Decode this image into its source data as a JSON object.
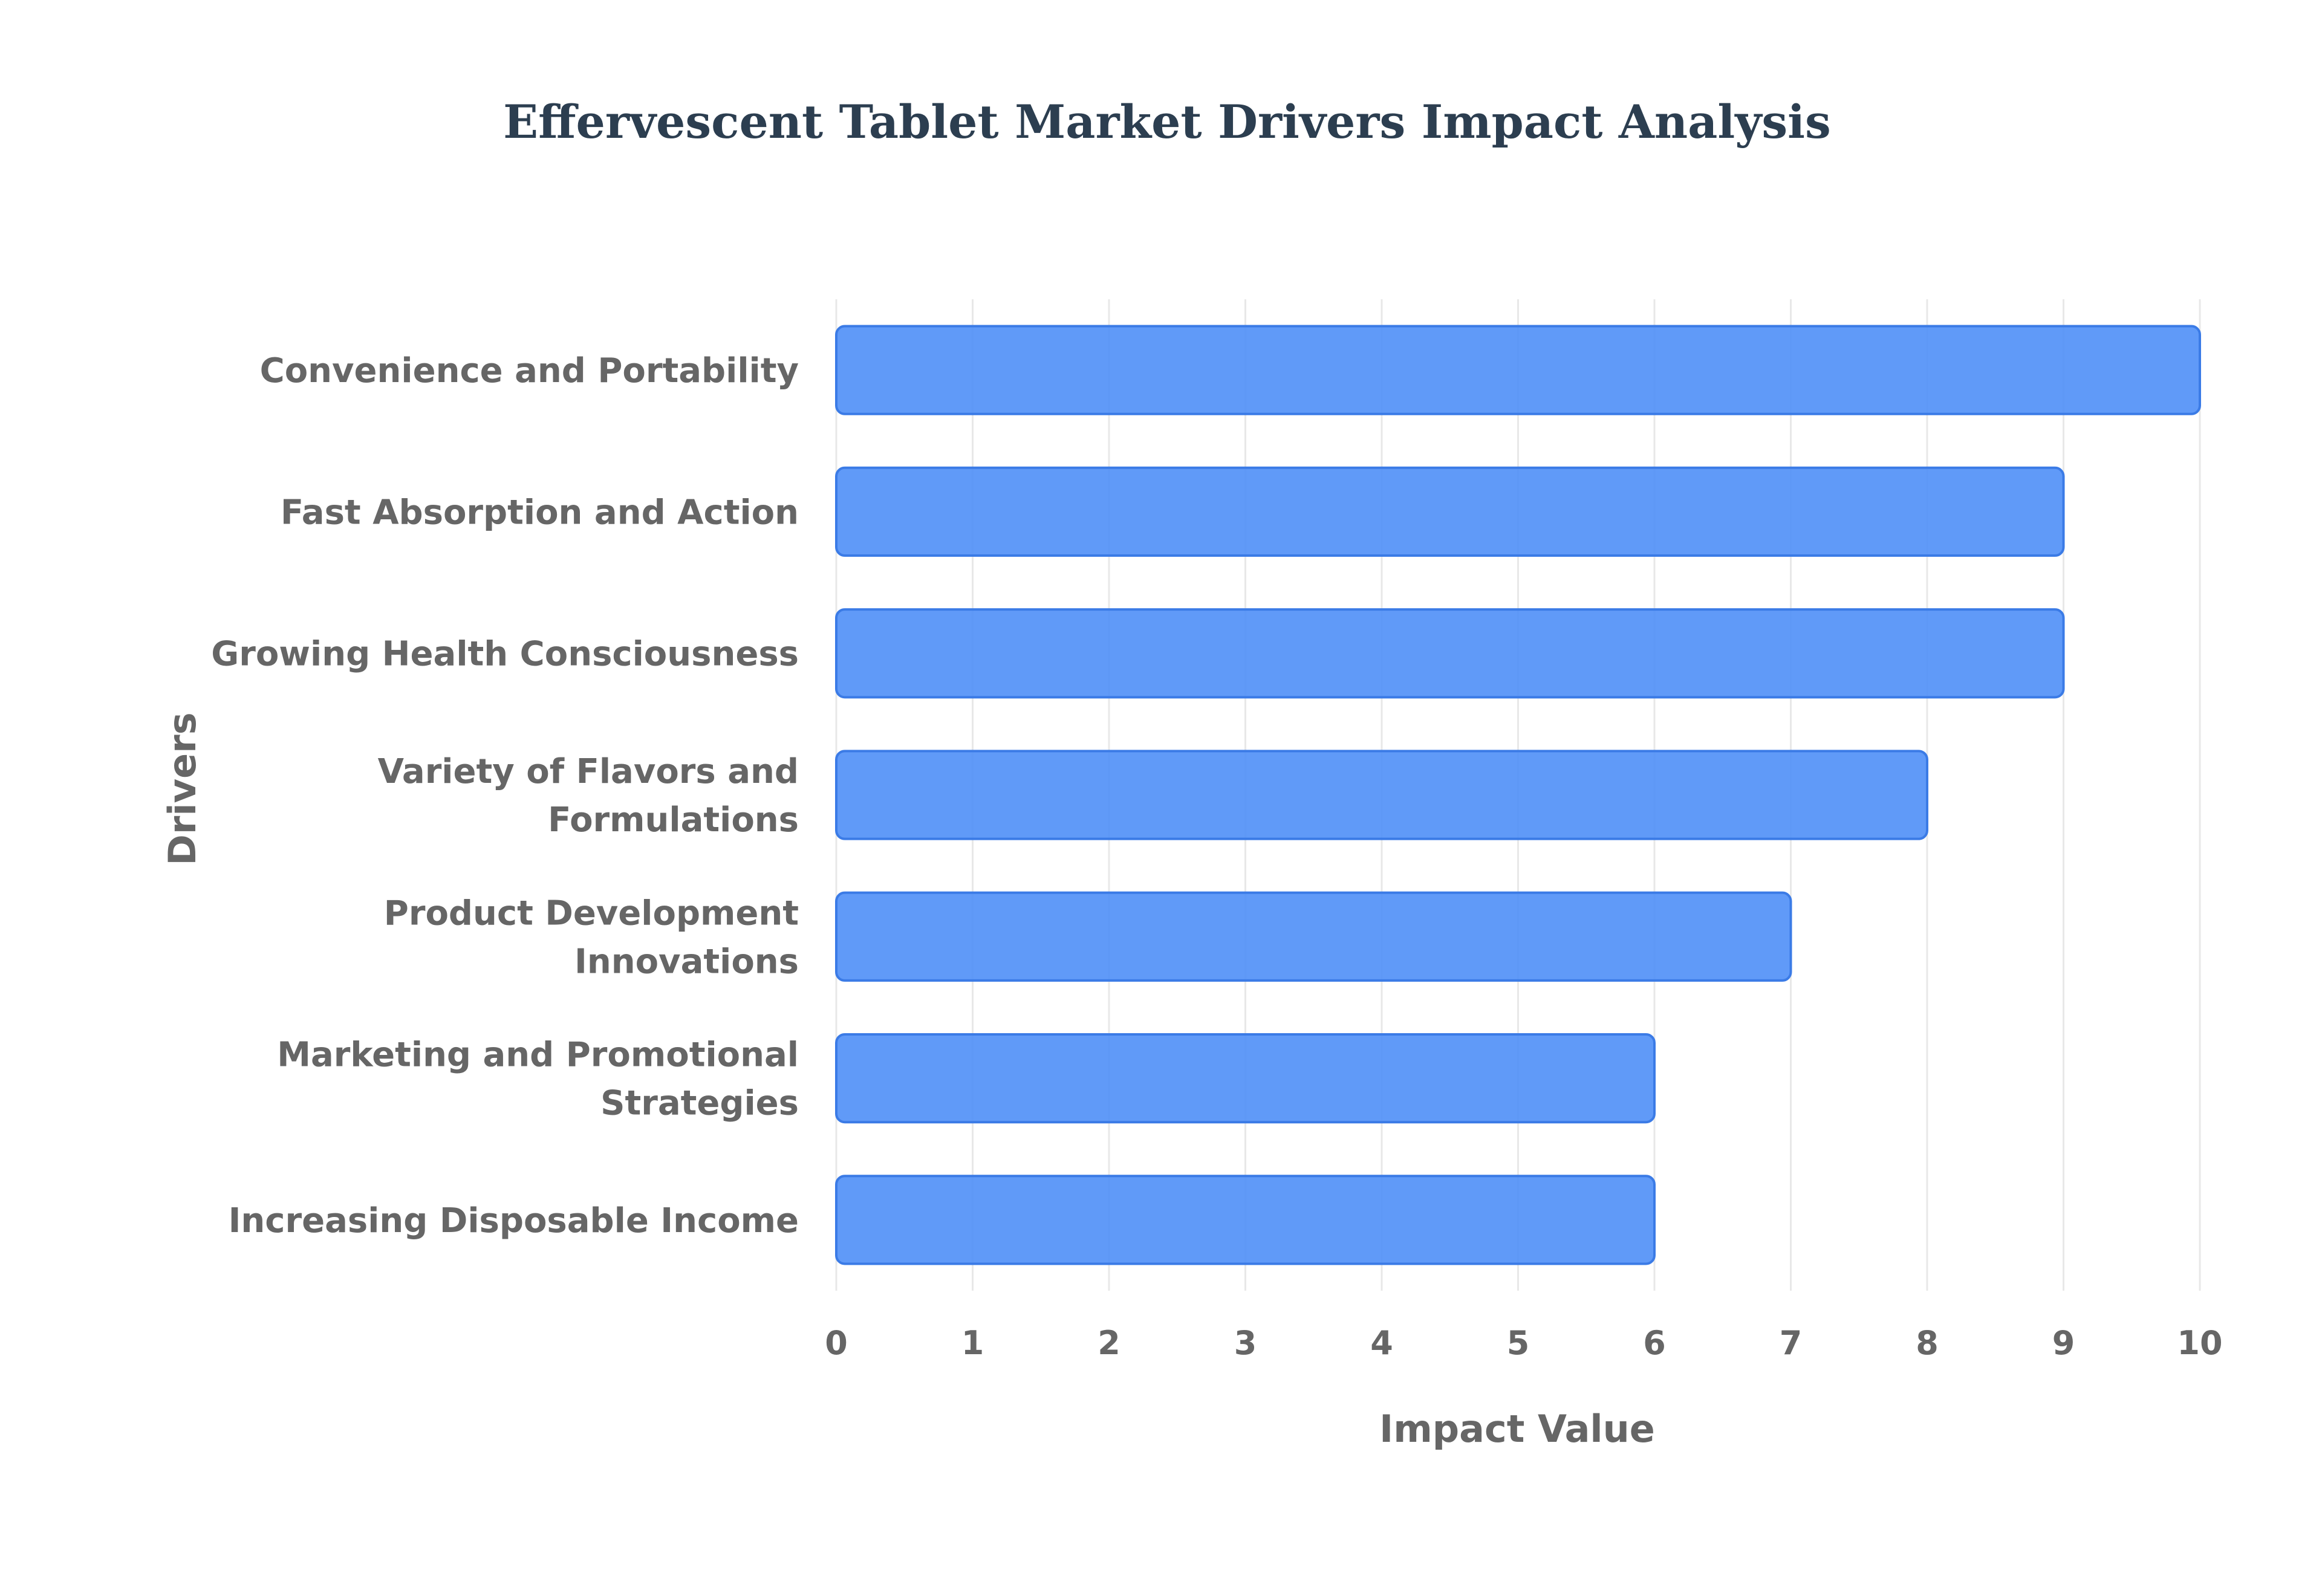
{
  "chart_data": {
    "type": "bar",
    "orientation": "horizontal",
    "title": "Effervescent Tablet Market Drivers Impact Analysis",
    "xlabel": "Impact Value",
    "ylabel": "Drivers",
    "categories": [
      "Convenience and Portability",
      "Fast Absorption and Action",
      "Growing Health Consciousness",
      "Variety of Flavors and Formulations",
      "Product Development Innovations",
      "Marketing and Promotional Strategies",
      "Increasing Disposable Income"
    ],
    "category_label_lines": [
      [
        "Convenience and Portability"
      ],
      [
        "Fast Absorption and Action"
      ],
      [
        "Growing Health Consciousness"
      ],
      [
        "Variety of Flavors and",
        "Formulations"
      ],
      [
        "Product Development",
        "Innovations"
      ],
      [
        "Marketing and Promotional",
        "Strategies"
      ],
      [
        "Increasing Disposable Income"
      ]
    ],
    "values": [
      10,
      9,
      9,
      8,
      7,
      6,
      6
    ],
    "xlim": [
      0,
      10
    ],
    "xticks": [
      "0",
      "1",
      "2",
      "3",
      "4",
      "5",
      "6",
      "7",
      "8",
      "9",
      "10"
    ],
    "grid": true,
    "legend": "none",
    "colors": {
      "bar_fill": "#4f8ff7",
      "bar_stroke": "#3b7be6",
      "title": "#2c3e50",
      "label": "#666666",
      "grid": "#e8e8e8"
    }
  }
}
